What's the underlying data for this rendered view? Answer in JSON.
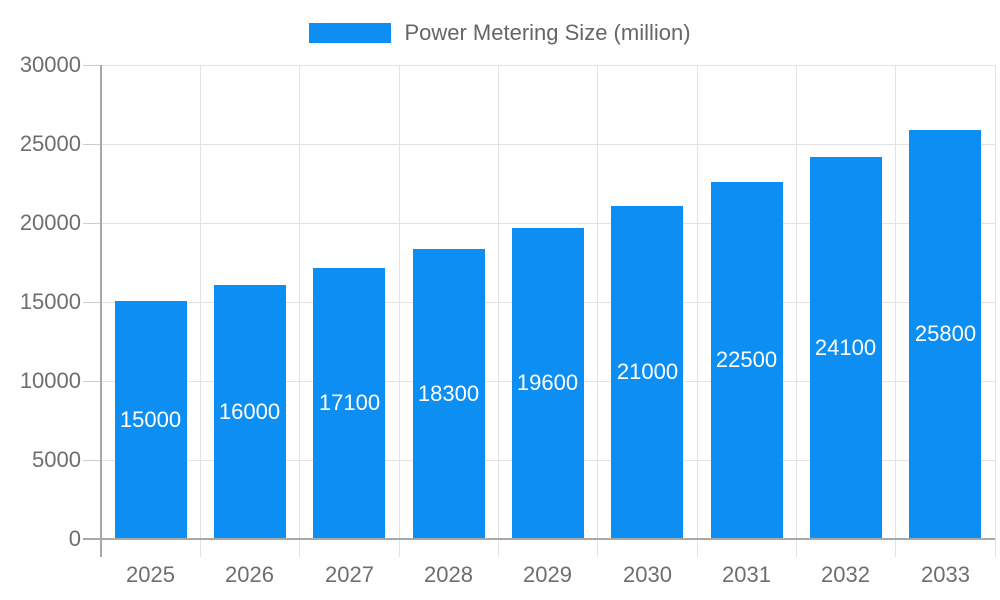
{
  "legend": {
    "label": "Power Metering Size (million)"
  },
  "colors": {
    "bar": "#0d8ef2",
    "bar_label": "#ffffff",
    "axis_line": "#a8a8a8",
    "gridline": "#e3e3e3",
    "tick_mark": "#cdcdcd",
    "axis_label": "#6e6e6e",
    "legend_text": "#666666",
    "background": "#ffffff"
  },
  "chart_data": {
    "type": "bar",
    "title": "Power Metering Size (million)",
    "categories": [
      "2025",
      "2026",
      "2027",
      "2028",
      "2029",
      "2030",
      "2031",
      "2032",
      "2033"
    ],
    "values": [
      15000,
      16000,
      17100,
      18300,
      19600,
      21000,
      22500,
      24100,
      25800
    ],
    "bar_labels": [
      "15000",
      "16000",
      "17100",
      "18300",
      "19600",
      "21000",
      "22500",
      "24100",
      "25800"
    ],
    "xlabel": "",
    "ylabel": "",
    "ylim": [
      0,
      30000
    ],
    "ytick_step": 5000,
    "yticks": [
      0,
      5000,
      10000,
      15000,
      20000,
      25000,
      30000
    ],
    "ytick_labels": [
      "0",
      "5000",
      "10000",
      "15000",
      "20000",
      "25000",
      "30000"
    ],
    "grid": true,
    "legend_position": "top-center",
    "bar_value_labels": "inside-center-white"
  }
}
